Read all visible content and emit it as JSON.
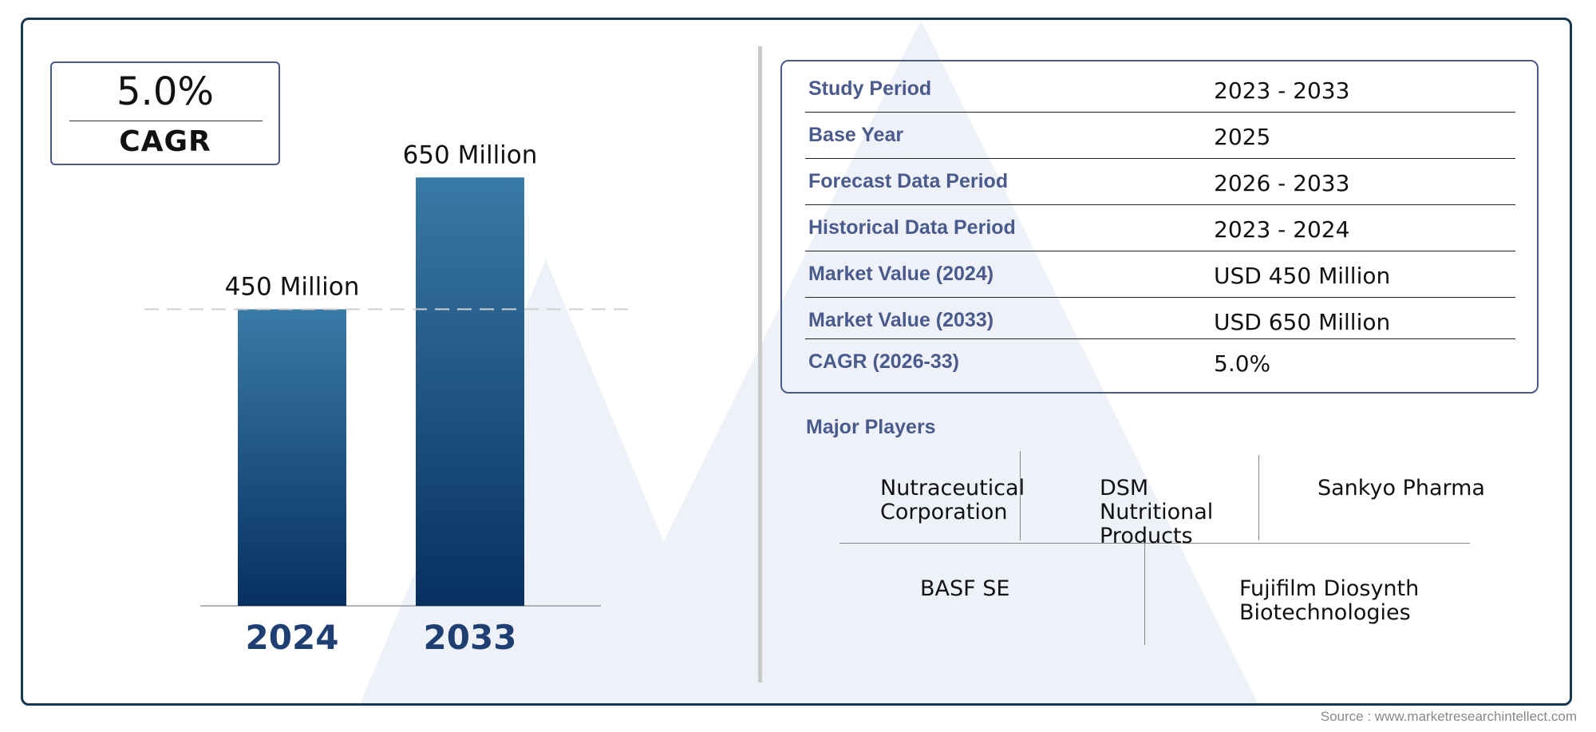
{
  "cagr": {
    "value": "5.0%",
    "label": "CAGR"
  },
  "chart_data": {
    "type": "bar",
    "categories": [
      "2024",
      "2033"
    ],
    "values": [
      450,
      650
    ],
    "value_labels": [
      "450 Million",
      "650 Million"
    ],
    "unit": "Million",
    "ylim": [
      0,
      700
    ],
    "grid": false,
    "colors": {
      "bar_top": "#3a7aa6",
      "bar_bottom": "#07305f",
      "category_text": "#1f3f73"
    }
  },
  "info_table": [
    {
      "label": "Study Period",
      "value": "2023 - 2033"
    },
    {
      "label": "Base Year",
      "value": "2025"
    },
    {
      "label": "Forecast Data Period",
      "value": "2026 - 2033"
    },
    {
      "label": "Historical Data Period",
      "value": "2023 - 2024"
    },
    {
      "label": "Market Value (2024)",
      "value": "USD 450 Million"
    },
    {
      "label": "Market Value (2033)",
      "value": "USD 650 Million"
    },
    {
      "label": "CAGR (2026-33)",
      "value": "5.0%"
    }
  ],
  "players": {
    "title": "Major Players",
    "names": [
      "Nutraceutical Corporation",
      "DSM Nutritional Products",
      "Sankyo Pharma",
      "BASF SE",
      "Fujifilm Diosynth Biotechnologies"
    ]
  },
  "source": "Source : www.marketresearchintellect.com",
  "colors": {
    "frame": "#17384f",
    "accent": "#4a5a8c",
    "divider": "#c9c9c9",
    "watermark": "#eef2f8"
  }
}
